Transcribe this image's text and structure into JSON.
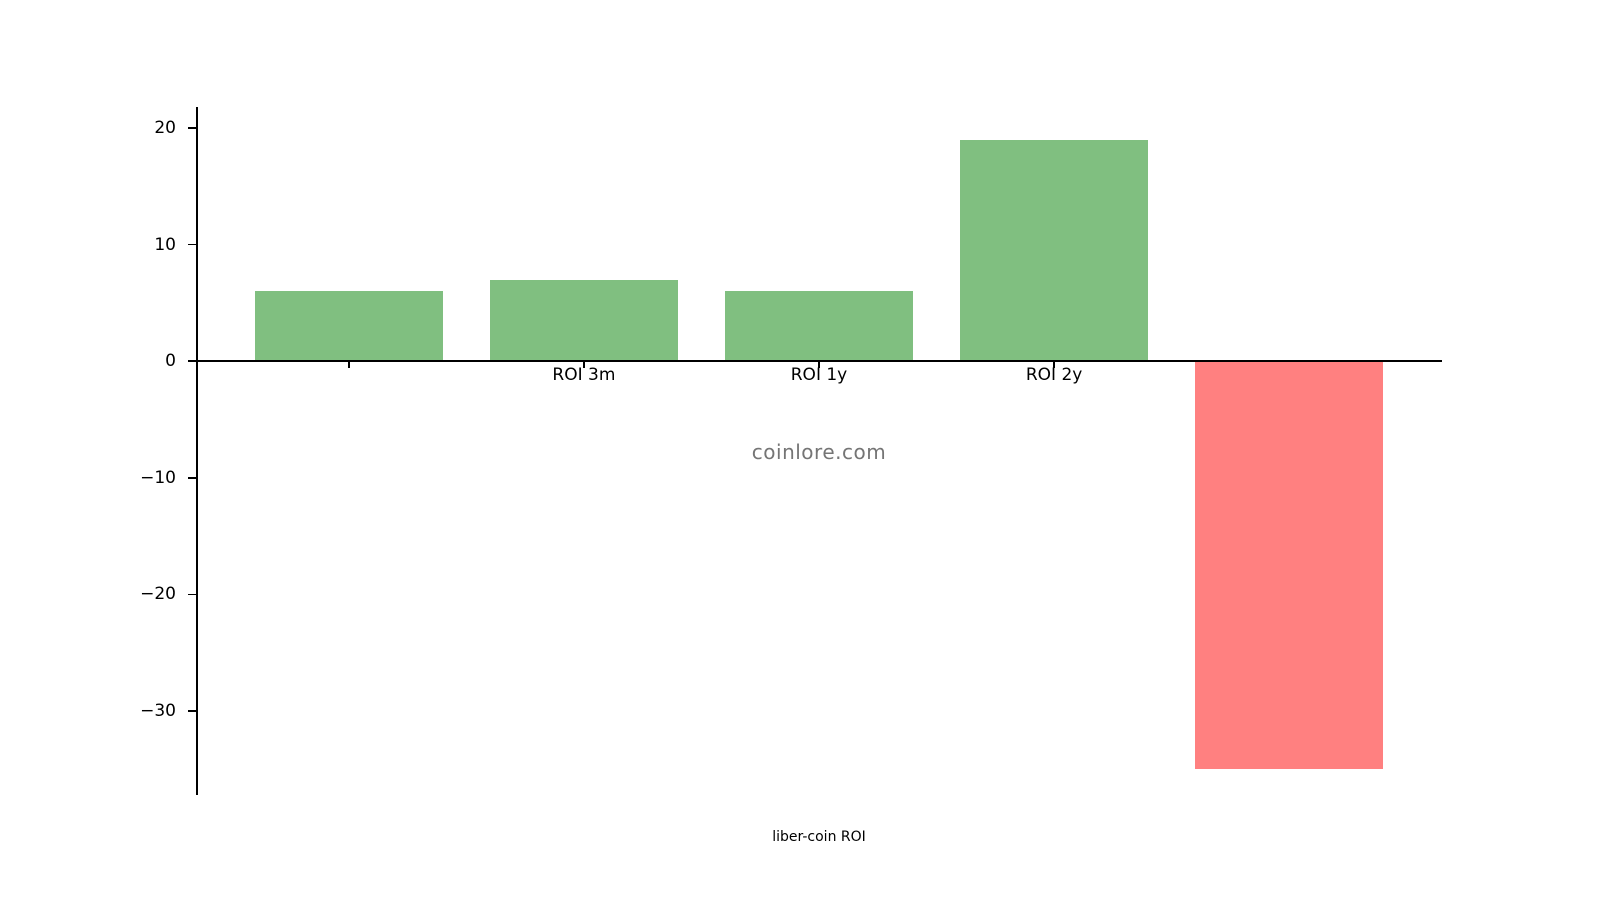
{
  "watermark": {
    "text": "coinlore.com",
    "color": "#757575"
  },
  "chart_data": {
    "type": "bar",
    "title": "",
    "xlabel": "liber-coin ROI",
    "ylabel": "",
    "categories": [
      "",
      "ROI 3m",
      "ROI 1y",
      "ROI 2y",
      ""
    ],
    "values": [
      6,
      7,
      6,
      19,
      -35
    ],
    "yticks": [
      20,
      10,
      0,
      -10,
      -20,
      -30
    ],
    "ylim": [
      21.8,
      -37.2
    ],
    "xlim": [
      -0.65,
      4.65
    ],
    "bar_width": 0.8,
    "grid": false,
    "legend": "none",
    "colors": {
      "positive": "#80bf80",
      "negative": "#ff8080",
      "axis": "#000000",
      "tick_text": "#000000"
    }
  }
}
